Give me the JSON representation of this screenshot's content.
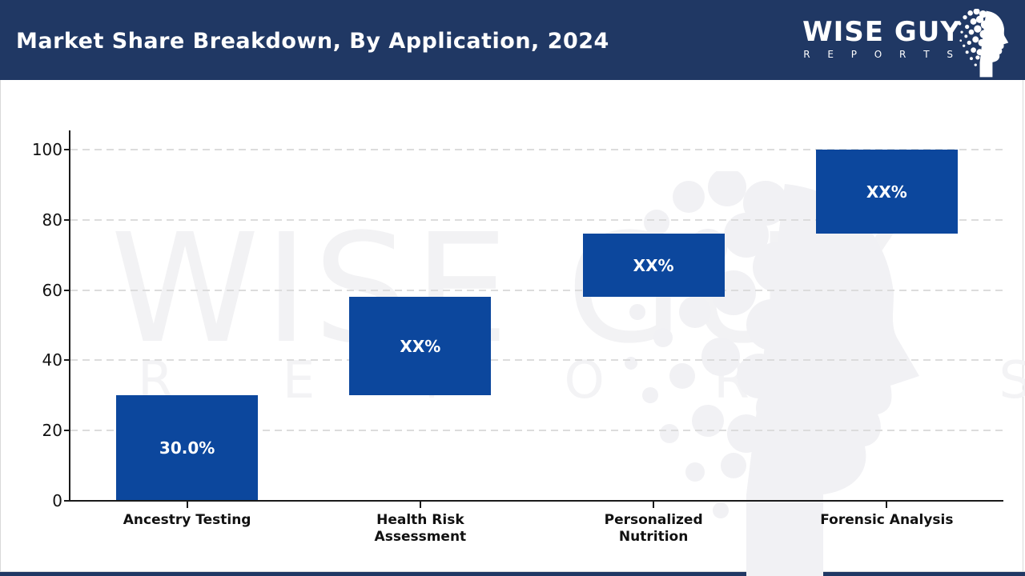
{
  "header": {
    "title": "Market Share Breakdown, By Application, 2024",
    "logo": {
      "line1": "WISE GUY",
      "line2": "R E P O R T S",
      "icon": "dotted-face-profile"
    }
  },
  "watermark": {
    "line1": "WISE GUY",
    "line2": "R E P O R T S",
    "icon": "dotted-face-profile"
  },
  "colors": {
    "header_bg": "#203864",
    "bar_fill": "#0c479d",
    "gridline": "#dcdcdc",
    "axis": "#1a1a1a",
    "value_label_text": "#ffffff",
    "watermark": "#f2f2f4",
    "background": "#ffffff"
  },
  "chart_data": {
    "type": "bar",
    "subtype": "waterfall",
    "title": "Market Share Breakdown, By Application, 2024",
    "xlabel": "",
    "ylabel": "",
    "ylim": [
      0,
      100
    ],
    "yticks": [
      0,
      20,
      40,
      60,
      80,
      100
    ],
    "grid": "horizontal-dashed",
    "legend": "none",
    "categories": [
      "Ancestry Testing",
      "Health Risk\nAssessment",
      "Personalized\nNutrition",
      "Forensic Analysis"
    ],
    "bars": [
      {
        "category": "Ancestry Testing",
        "start": 0,
        "end": 30,
        "value_label": "30.0%"
      },
      {
        "category": "Health Risk Assessment",
        "start": 30,
        "end": 58,
        "value_label": "XX%"
      },
      {
        "category": "Personalized Nutrition",
        "start": 58,
        "end": 76,
        "value_label": "XX%"
      },
      {
        "category": "Forensic Analysis",
        "start": 76,
        "end": 100,
        "value_label": "XX%"
      }
    ]
  }
}
